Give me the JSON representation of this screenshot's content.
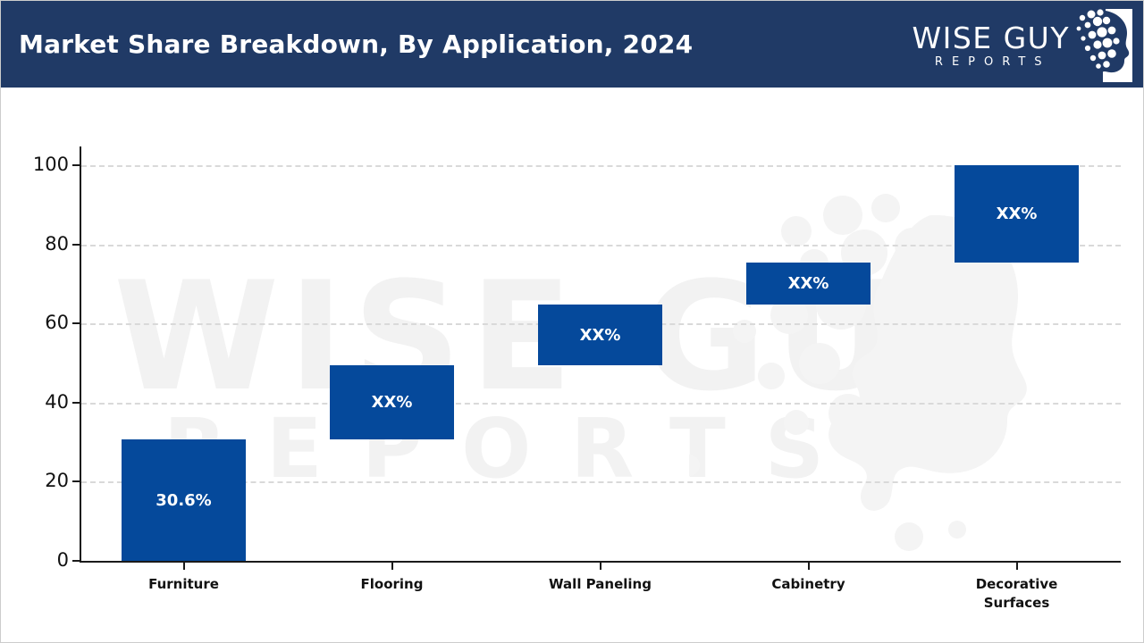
{
  "header": {
    "title": "Market Share Breakdown, By Application, 2024",
    "logo": {
      "brand_top": "WISE GUY",
      "brand_bottom": "REPORTS"
    }
  },
  "watermark": {
    "line1": "WISE GUY",
    "line2": "REPORTS"
  },
  "colors": {
    "header_bg": "#203a66",
    "bar": "#05499b",
    "grid": "#d9d9d9",
    "axis": "#1a1a1a",
    "watermark": "#f2f2f2",
    "frame_border": "#cccccc",
    "bar_label": "#ffffff"
  },
  "chart_data": {
    "type": "bar",
    "subtype": "waterfall",
    "title": "Market Share Breakdown, By Application, 2024",
    "xlabel": "",
    "ylabel": "",
    "ylim": [
      0,
      104.7
    ],
    "yticks": [
      0,
      20,
      40,
      60,
      80,
      100
    ],
    "grid": "horizontal-dashed",
    "legend": "none",
    "categories": [
      "Furniture",
      "Flooring",
      "Wall Paneling",
      "Cabinetry",
      "Decorative Surfaces"
    ],
    "bars": [
      {
        "category": "Furniture",
        "start": 0,
        "end": 30.6,
        "label": "30.6%"
      },
      {
        "category": "Flooring",
        "start": 30.6,
        "end": 49.4,
        "label": "XX%"
      },
      {
        "category": "Wall Paneling",
        "start": 49.4,
        "end": 64.7,
        "label": "XX%"
      },
      {
        "category": "Cabinetry",
        "start": 64.7,
        "end": 75.3,
        "label": "XX%"
      },
      {
        "category": "Decorative Surfaces",
        "start": 75.3,
        "end": 100,
        "label": "XX%"
      }
    ]
  }
}
